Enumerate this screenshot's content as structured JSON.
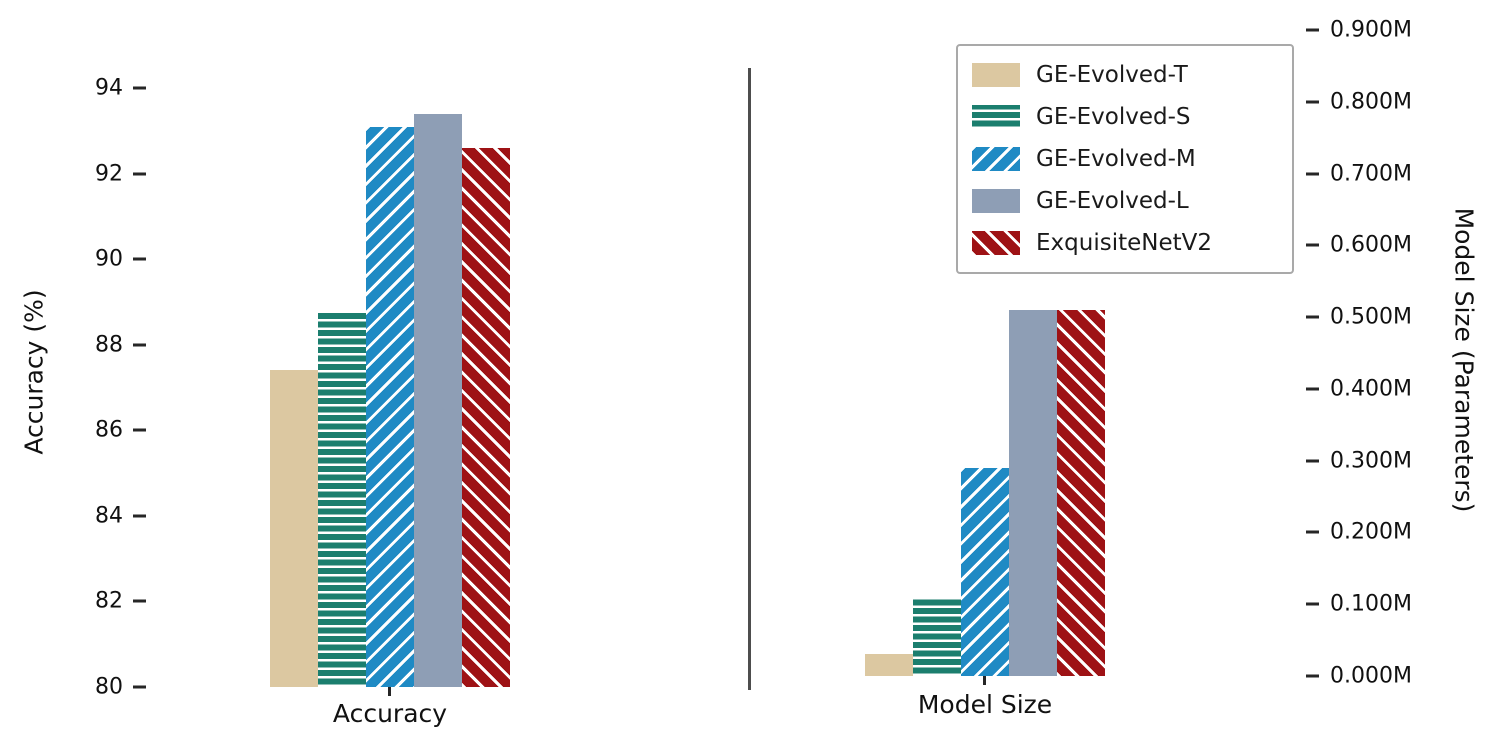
{
  "chart_data": [
    {
      "type": "bar",
      "panel": "accuracy",
      "xlabel": "Accuracy",
      "ylabel": "Accuracy (%)",
      "ylim": [
        80,
        94
      ],
      "ytick_values": [
        94,
        92,
        90,
        88,
        86,
        84,
        82,
        80
      ],
      "ytick_labels": [
        "94",
        "92",
        "90",
        "88",
        "86",
        "84",
        "82",
        "80"
      ],
      "categories": [
        "GE-Evolved-T",
        "GE-Evolved-S",
        "GE-Evolved-M",
        "GE-Evolved-L",
        "ExquisiteNetV2"
      ],
      "values": [
        87.4,
        88.8,
        93.1,
        93.4,
        92.6
      ],
      "grid": false,
      "legend_position": "none"
    },
    {
      "type": "bar",
      "panel": "model-size",
      "xlabel": "Model Size",
      "ylabel": "Model Size (Parameters)",
      "ylim": [
        0,
        0.9
      ],
      "ytick_values": [
        0.9,
        0.8,
        0.7,
        0.6,
        0.5,
        0.4,
        0.3,
        0.2,
        0.1,
        0.0
      ],
      "ytick_labels": [
        "0.900M",
        "0.800M",
        "0.700M",
        "0.600M",
        "0.500M",
        "0.400M",
        "0.300M",
        "0.200M",
        "0.100M",
        "0.000M"
      ],
      "categories": [
        "GE-Evolved-T",
        "GE-Evolved-S",
        "GE-Evolved-M",
        "GE-Evolved-L",
        "ExquisiteNetV2"
      ],
      "values": [
        0.03,
        0.11,
        0.29,
        0.51,
        0.51
      ],
      "grid": false,
      "legend_position": "upper-right"
    }
  ],
  "legend": {
    "entries": [
      {
        "label": "GE-Evolved-T",
        "color": "#dcc8a1",
        "hatch": "none"
      },
      {
        "label": "GE-Evolved-S",
        "color": "#1b7e6e",
        "hatch": "horizontal"
      },
      {
        "label": "GE-Evolved-M",
        "color": "#1f8ac4",
        "hatch": "forward-diagonal"
      },
      {
        "label": "GE-Evolved-L",
        "color": "#8e9eb5",
        "hatch": "none"
      },
      {
        "label": "ExquisiteNetV2",
        "color": "#9e1215",
        "hatch": "backward-diagonal"
      }
    ]
  },
  "colors": {
    "tick": "#262626",
    "divider": "#4d4d4d",
    "hatch_line": "#ffffff"
  }
}
